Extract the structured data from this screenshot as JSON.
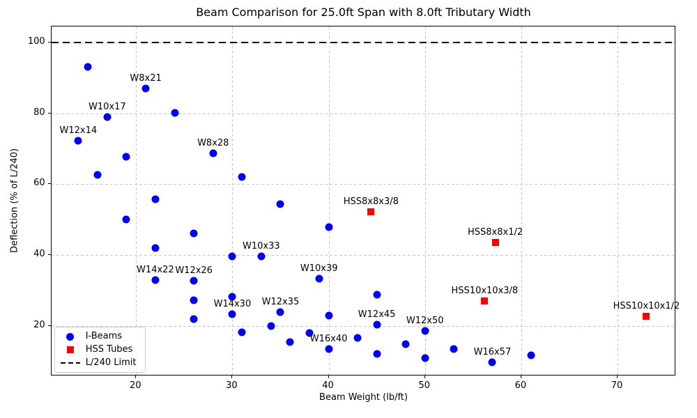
{
  "chart_data": {
    "type": "scatter",
    "title": "Beam Comparison for 25.0ft Span with 8.0ft Tributary Width",
    "xlabel": "Beam Weight (lb/ft)",
    "ylabel": "Deflection (% of L/240)",
    "xlim": [
      11.2,
      76.1
    ],
    "ylim": [
      5.8,
      104.5
    ],
    "xticks": [
      20,
      30,
      40,
      50,
      60,
      70
    ],
    "yticks": [
      20,
      40,
      60,
      80,
      100
    ],
    "grid": true,
    "legend_position": "lower-left",
    "limit_line": {
      "y": 100,
      "label": "L/240 Limit",
      "style": "dashed",
      "color": "#000000"
    },
    "series": [
      {
        "name": "I-Beams",
        "marker": "circle",
        "color": "#0000ee",
        "points": [
          {
            "x": 14,
            "y": 72.2,
            "label": "W12x14"
          },
          {
            "x": 15,
            "y": 93.2,
            "label": null
          },
          {
            "x": 16,
            "y": 62.6,
            "label": null
          },
          {
            "x": 17,
            "y": 79.0,
            "label": "W10x17"
          },
          {
            "x": 19,
            "y": 67.8,
            "label": null
          },
          {
            "x": 19,
            "y": 50.0,
            "label": null
          },
          {
            "x": 21,
            "y": 87.0,
            "label": "W8x21"
          },
          {
            "x": 22,
            "y": 55.8,
            "label": null
          },
          {
            "x": 22,
            "y": 42.1,
            "label": null
          },
          {
            "x": 22,
            "y": 33.0,
            "label": "W14x22"
          },
          {
            "x": 24,
            "y": 80.2,
            "label": null
          },
          {
            "x": 26,
            "y": 46.2,
            "label": null
          },
          {
            "x": 26,
            "y": 32.7,
            "label": "W12x26"
          },
          {
            "x": 26,
            "y": 27.2,
            "label": null
          },
          {
            "x": 26,
            "y": 22.0,
            "label": null
          },
          {
            "x": 28,
            "y": 68.8,
            "label": "W8x28"
          },
          {
            "x": 30,
            "y": 39.7,
            "label": null
          },
          {
            "x": 30,
            "y": 28.3,
            "label": null
          },
          {
            "x": 30,
            "y": 23.3,
            "label": "W14x30"
          },
          {
            "x": 31,
            "y": 62.0,
            "label": null
          },
          {
            "x": 31,
            "y": 18.2,
            "label": null
          },
          {
            "x": 33,
            "y": 39.7,
            "label": "W10x33"
          },
          {
            "x": 34,
            "y": 20.1,
            "label": null
          },
          {
            "x": 35,
            "y": 54.4,
            "label": null
          },
          {
            "x": 35,
            "y": 24.0,
            "label": "W12x35"
          },
          {
            "x": 36,
            "y": 15.5,
            "label": null
          },
          {
            "x": 38,
            "y": 18.0,
            "label": null
          },
          {
            "x": 39,
            "y": 33.4,
            "label": "W10x39"
          },
          {
            "x": 40,
            "y": 48.0,
            "label": null
          },
          {
            "x": 40,
            "y": 22.9,
            "label": null
          },
          {
            "x": 40,
            "y": 13.6,
            "label": "W16x40"
          },
          {
            "x": 43,
            "y": 16.7,
            "label": null
          },
          {
            "x": 45,
            "y": 28.8,
            "label": null
          },
          {
            "x": 45,
            "y": 20.4,
            "label": "W12x45"
          },
          {
            "x": 45,
            "y": 12.1,
            "label": null
          },
          {
            "x": 48,
            "y": 14.9,
            "label": null
          },
          {
            "x": 50,
            "y": 18.6,
            "label": "W12x50"
          },
          {
            "x": 50,
            "y": 11.0,
            "label": null
          },
          {
            "x": 53,
            "y": 13.6,
            "label": null
          },
          {
            "x": 57,
            "y": 9.8,
            "label": "W16x57"
          },
          {
            "x": 61,
            "y": 11.7,
            "label": null
          }
        ]
      },
      {
        "name": "HSS Tubes",
        "marker": "square",
        "color": "#ff0000",
        "points": [
          {
            "x": 44.4,
            "y": 52.3,
            "label": "HSS8x8x3/8"
          },
          {
            "x": 57.3,
            "y": 43.5,
            "label": "HSS8x8x1/2"
          },
          {
            "x": 56.2,
            "y": 27.1,
            "label": "HSS10x10x3/8"
          },
          {
            "x": 73.0,
            "y": 22.7,
            "label": "HSS10x10x1/2"
          }
        ]
      }
    ]
  }
}
